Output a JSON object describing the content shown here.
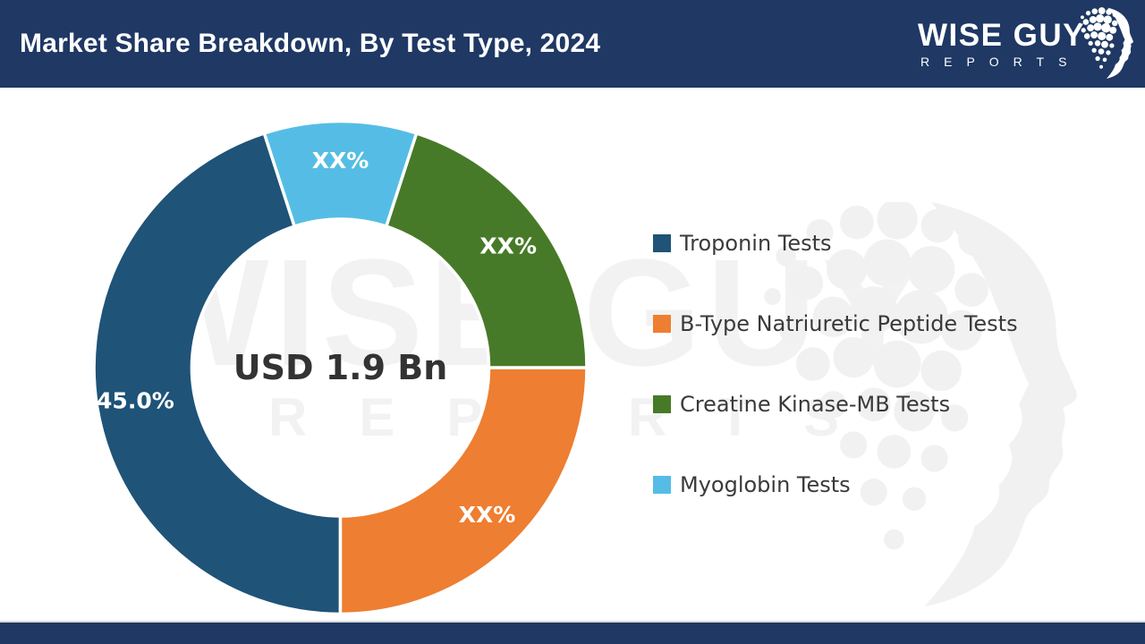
{
  "header": {
    "title": "Market Share Breakdown, By Test Type, 2024",
    "bg_color": "#1f3864",
    "logo": {
      "line1": "WISE GUY",
      "line2": "REPORTS"
    }
  },
  "watermark": {
    "line1": "WISE GUY",
    "line2": "REPORTS"
  },
  "chart_data": {
    "type": "pie",
    "subtype": "donut",
    "title": "Market Share Breakdown, By Test Type, 2024",
    "center_label": "USD 1.9 Bn",
    "start_angle_deg": 108,
    "direction": "counterclockwise",
    "legend_position": "right",
    "slice_edge_color": "#ffffff",
    "slices": [
      {
        "id": "troponin",
        "label": "Troponin Tests",
        "value_pct": 45.0,
        "display_label": "45.0%",
        "color": "#1f5378"
      },
      {
        "id": "bnp",
        "label": "B-Type Natriuretic Peptide Tests",
        "value_pct": 25.0,
        "display_label": "XX%",
        "color": "#ee7e31"
      },
      {
        "id": "ckmb",
        "label": "Creatine Kinase-MB Tests",
        "value_pct": 20.0,
        "display_label": "XX%",
        "color": "#477a28"
      },
      {
        "id": "myoglobin",
        "label": "Myoglobin Tests",
        "value_pct": 10.0,
        "display_label": "XX%",
        "color": "#55bde5"
      }
    ]
  }
}
